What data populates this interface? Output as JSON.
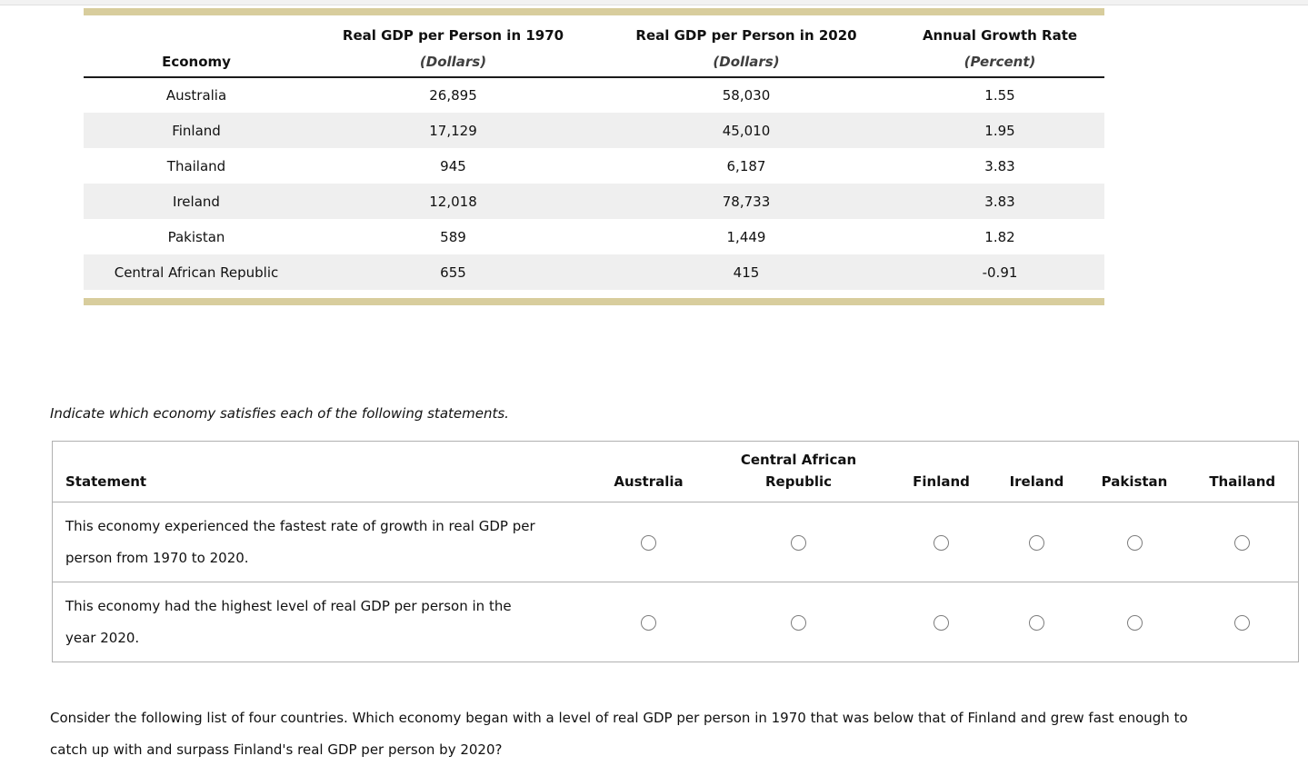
{
  "colors": {
    "accent_bar": "#d8cd9d",
    "alt_row": "#efefef"
  },
  "gdp_table": {
    "header": {
      "economy_label": "Economy",
      "col1_title": "Real GDP per Person in 1970",
      "col1_sub": "(Dollars)",
      "col2_title": "Real GDP per Person in 2020",
      "col2_sub": "(Dollars)",
      "col3_title": "Annual Growth Rate",
      "col3_sub": "(Percent)"
    },
    "rows": [
      {
        "economy": "Australia",
        "gdp1970": "26,895",
        "gdp2020": "58,030",
        "growth": "1.55"
      },
      {
        "economy": "Finland",
        "gdp1970": "17,129",
        "gdp2020": "45,010",
        "growth": "1.95"
      },
      {
        "economy": "Thailand",
        "gdp1970": "945",
        "gdp2020": "6,187",
        "growth": "3.83"
      },
      {
        "economy": "Ireland",
        "gdp1970": "12,018",
        "gdp2020": "78,733",
        "growth": "3.83"
      },
      {
        "economy": "Pakistan",
        "gdp1970": "589",
        "gdp2020": "1,449",
        "growth": "1.82"
      },
      {
        "economy": "Central African Republic",
        "gdp1970": "655",
        "gdp2020": "415",
        "growth": "-0.91"
      }
    ]
  },
  "instruction": "Indicate which economy satisfies each of the following statements.",
  "statements_table": {
    "statement_header": "Statement",
    "options": [
      "Australia",
      "Central African Republic",
      "Finland",
      "Ireland",
      "Pakistan",
      "Thailand"
    ],
    "rows": [
      {
        "statement": "This economy experienced the fastest rate of growth in real GDP per person from 1970 to 2020."
      },
      {
        "statement": "This economy had the highest level of real GDP per person in the year 2020."
      }
    ]
  },
  "question": "Consider the following list of four countries. Which economy began with a level of real GDP per person in 1970 that was below that of Finland and grew fast enough to catch up with and surpass Finland's real GDP per person by 2020?"
}
